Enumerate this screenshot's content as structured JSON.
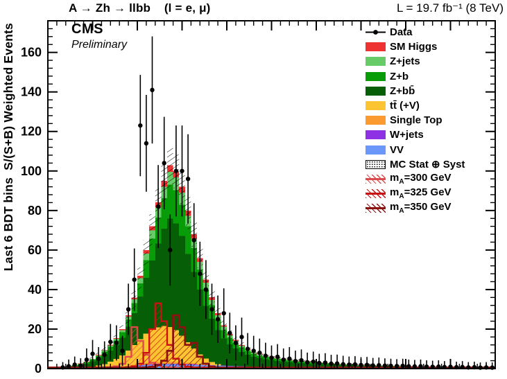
{
  "header": {
    "decay_title": "A → Zh → llbb    (l = e, μ)",
    "lumi": "L = 19.7 fb⁻¹ (8 TeV)",
    "experiment": "CMS",
    "status": "Preliminary"
  },
  "legend": [
    {
      "id": "data",
      "type": "marker",
      "color": "#000000",
      "label": "Data"
    },
    {
      "id": "smhiggs",
      "type": "fill",
      "color": "#ee3232",
      "label": "SM Higgs"
    },
    {
      "id": "zjets",
      "type": "fill",
      "color": "#67cb67",
      "label": "Z+jets"
    },
    {
      "id": "zb",
      "type": "fill",
      "color": "#089c08",
      "label": "Z+b"
    },
    {
      "id": "zbb",
      "type": "fill",
      "color": "#065f06",
      "label": "Z+bb̄"
    },
    {
      "id": "ttbar",
      "type": "fill",
      "color": "#fcc430",
      "label": "tt̄ (+V)"
    },
    {
      "id": "singletop",
      "type": "fill",
      "color": "#fb9a2e",
      "label": "Single Top"
    },
    {
      "id": "wjets",
      "type": "fill",
      "color": "#8e30e3",
      "label": "W+jets"
    },
    {
      "id": "vv",
      "type": "fill",
      "color": "#6b96fa",
      "label": "VV"
    },
    {
      "id": "mcstat",
      "type": "mc",
      "color": "#000000",
      "label": "MC Stat ⊕ Syst"
    },
    {
      "id": "m300",
      "type": "signal",
      "color": "#dc4b4b",
      "label_pre": "m",
      "label_sub": "A",
      "label_post": "=300 GeV"
    },
    {
      "id": "m325",
      "type": "signal",
      "color": "#c91212",
      "label_pre": "m",
      "label_sub": "A",
      "label_post": "=325 GeV"
    },
    {
      "id": "m350",
      "type": "signal",
      "color": "#8c1111",
      "label_pre": "m",
      "label_sub": "A",
      "label_post": "=350 GeV"
    }
  ],
  "chart_data": {
    "type": "bar",
    "subtype": "stacked-histogram-with-data-points-and-signal-overlays",
    "title": "A → Zh → llbb (l = e, μ)",
    "xlabel": "",
    "ylabel": "Last 6 BDT bins  S/(S+B) Weighted Events",
    "ylim": [
      0,
      176
    ],
    "y_major_tick_step": 20,
    "y_minor_tick_step": 4,
    "y_tick_labels": [
      0,
      20,
      40,
      60,
      80,
      100,
      120,
      140,
      160
    ],
    "x_axis_labels_shown": false,
    "x_major_divisions": 10,
    "x_minor_per_major": 5,
    "n_bins": 75,
    "grid": false,
    "legend_position": "top-right-inside",
    "colors": {
      "smhiggs": "#ee3232",
      "zjets": "#67cb67",
      "zb": "#089c08",
      "zbb": "#065f06",
      "ttbar": "#fcc430",
      "singletop": "#fb9a2e",
      "wjets": "#8e30e3",
      "vv": "#6b96fa",
      "m300": "#dc4b4b",
      "m325": "#c91212",
      "m350": "#8c1111",
      "data": "#000000",
      "frame": "#000000"
    },
    "stack_order": [
      "vv",
      "wjets",
      "singletop",
      "ttbar",
      "zbb",
      "zb",
      "zjets",
      "smhiggs"
    ],
    "series": {
      "vv": [
        0,
        0,
        0,
        0,
        0,
        0,
        0,
        0,
        0.1,
        0.15,
        0.2,
        0.3,
        0.5,
        0.8,
        1.1,
        1.4,
        1.7,
        1.9,
        2.1,
        2.2,
        2.2,
        2.2,
        2.1,
        2.0,
        1.9,
        1.8,
        1.7,
        1.6,
        1.5,
        1.4,
        1.3,
        1.2,
        1.1,
        1.0,
        0.9,
        0.85,
        0.8,
        0.75,
        0.7,
        0.65,
        0.6,
        0.55,
        0.5,
        0.48,
        0.45,
        0.42,
        0.4,
        0.38,
        0.35,
        0.32,
        0.3,
        0.28,
        0.26,
        0.24,
        0.22,
        0.2,
        0.18,
        0.16,
        0.15,
        0.14,
        0.13,
        0.12,
        0.11,
        0.1,
        0.1,
        0.09,
        0.09,
        0.08,
        0.08,
        0.07,
        0.07,
        0.06,
        0.06,
        0.05,
        0.05
      ],
      "wjets": [
        0,
        0,
        0,
        0,
        0,
        0,
        0,
        0,
        0.1,
        0.1,
        0.1,
        0.1,
        0.1,
        0.1,
        0.3,
        0.3,
        0.3,
        0.3,
        0.3,
        0.3,
        0.3,
        0.3,
        0.3,
        0.3,
        0.3,
        0.1,
        0.1,
        0.1,
        0.1,
        0.1,
        0.1,
        0.1,
        0.1,
        0.1,
        0.1,
        0.1,
        0.1,
        0.1,
        0.1,
        0.1,
        0.1,
        0,
        0,
        0,
        0,
        0,
        0,
        0,
        0,
        0,
        0,
        0,
        0,
        0,
        0,
        0,
        0,
        0,
        0,
        0,
        0,
        0,
        0,
        0,
        0,
        0,
        0,
        0,
        0,
        0,
        0,
        0,
        0,
        0,
        0
      ],
      "singletop": [
        0,
        0,
        0,
        0,
        0,
        0,
        0,
        0,
        0,
        0,
        0.2,
        0.25,
        0.3,
        0.45,
        0.6,
        0.75,
        0.9,
        1.0,
        1.0,
        1.1,
        1.0,
        0.9,
        0.8,
        0.6,
        0.45,
        0.3,
        0.2,
        0.1,
        0,
        0,
        0,
        0,
        0,
        0,
        0,
        0,
        0,
        0,
        0,
        0,
        0,
        0,
        0,
        0,
        0,
        0,
        0,
        0,
        0,
        0,
        0,
        0,
        0,
        0,
        0,
        0,
        0,
        0,
        0,
        0,
        0,
        0,
        0,
        0,
        0,
        0,
        0,
        0,
        0,
        0,
        0,
        0,
        0,
        0,
        0
      ],
      "ttbar": [
        0,
        0,
        0,
        0,
        0,
        0.3,
        0.5,
        0.9,
        1.4,
        2.0,
        3.0,
        4.2,
        5.8,
        7.8,
        10,
        12.5,
        14.8,
        16.5,
        17.5,
        18,
        17.5,
        16,
        13.5,
        10.5,
        7.5,
        5,
        3,
        1.5,
        0.6,
        0,
        0,
        0,
        0,
        0,
        0,
        0,
        0,
        0,
        0,
        0,
        0,
        0,
        0,
        0,
        0,
        0,
        0,
        0,
        0,
        0,
        0,
        0,
        0,
        0,
        0,
        0,
        0,
        0,
        0,
        0,
        0,
        0,
        0,
        0,
        0,
        0,
        0,
        0,
        0,
        0,
        0,
        0,
        0,
        0,
        0
      ],
      "zbb": [
        0.3,
        0.3,
        0.5,
        0.8,
        1.2,
        1.5,
        2.0,
        2.7,
        3.6,
        4.9,
        5.7,
        7.1,
        8.9,
        12,
        16.1,
        21.5,
        28.3,
        35,
        42.3,
        49.2,
        54.9,
        54,
        50.5,
        44.6,
        38.8,
        32.7,
        26.8,
        21.9,
        17.3,
        13.7,
        10.8,
        8.8,
        7.2,
        6.0,
        5.0,
        4.4,
        3.8,
        3.5,
        3.1,
        2.8,
        2.6,
        2.4,
        2.3,
        2.1,
        1.9,
        1.8,
        1.7,
        1.6,
        1.4,
        1.3,
        1.2,
        1.2,
        1.1,
        1.0,
        1.0,
        0.9,
        0.9,
        0.8,
        0.8,
        0.8,
        0.7,
        0.7,
        0.6,
        0.6,
        0.6,
        0.5,
        0.5,
        0.5,
        0.4,
        0.4,
        0.4,
        0.4,
        0.3,
        0.3,
        0.3
      ],
      "zb": [
        0.1,
        0.1,
        0.1,
        0.3,
        0.4,
        0.5,
        0.6,
        0.9,
        1.1,
        1.5,
        1.8,
        2.2,
        2.8,
        3.7,
        5.0,
        6.7,
        8.9,
        11,
        13.3,
        15.4,
        17.2,
        16.9,
        15.8,
        14,
        12.1,
        10.2,
        8.4,
        6.9,
        5.4,
        4.3,
        3.4,
        2.8,
        2.3,
        1.9,
        1.6,
        1.4,
        1.2,
        1.1,
        1.0,
        0.9,
        0.8,
        0.8,
        0.7,
        0.7,
        0.6,
        0.6,
        0.5,
        0.5,
        0.5,
        0.4,
        0.4,
        0.4,
        0.3,
        0.3,
        0.3,
        0.3,
        0.3,
        0.3,
        0.3,
        0.2,
        0.2,
        0.2,
        0.2,
        0.2,
        0.2,
        0.2,
        0.2,
        0.2,
        0.1,
        0.1,
        0.1,
        0.1,
        0.1,
        0.1,
        0.1
      ],
      "zjets": [
        0.03,
        0.04,
        0.06,
        0.1,
        0.14,
        0.18,
        0.24,
        0.33,
        0.43,
        0.58,
        0.68,
        0.85,
        1.06,
        1.43,
        1.92,
        2.56,
        3.38,
        4.18,
        5.05,
        5.87,
        6.56,
        6.45,
        6.02,
        5.33,
        4.63,
        3.9,
        3.2,
        2.62,
        2.06,
        1.64,
        1.29,
        1.06,
        0.86,
        0.71,
        0.6,
        0.52,
        0.45,
        0.41,
        0.38,
        0.34,
        0.31,
        0.29,
        0.27,
        0.25,
        0.23,
        0.21,
        0.2,
        0.19,
        0.17,
        0.16,
        0.14,
        0.14,
        0.13,
        0.12,
        0.12,
        0.11,
        0.11,
        0.1,
        0.1,
        0.09,
        0.09,
        0.08,
        0.08,
        0.07,
        0.07,
        0.06,
        0.06,
        0.06,
        0.05,
        0.05,
        0.05,
        0.04,
        0.04,
        0.04,
        0.03
      ],
      "smhiggs": [
        0.02,
        0.02,
        0.03,
        0.05,
        0.07,
        0.09,
        0.12,
        0.16,
        0.22,
        0.29,
        0.34,
        0.43,
        0.53,
        0.71,
        0.96,
        1.28,
        1.69,
        2.09,
        2.52,
        2.94,
        3.28,
        3.22,
        3.01,
        2.66,
        2.31,
        1.95,
        1.6,
        1.31,
        1.03,
        0.82,
        0.64,
        0.53,
        0.43,
        0.36,
        0.3,
        0.26,
        0.22,
        0.21,
        0.19,
        0.17,
        0.16,
        0.15,
        0.14,
        0.12,
        0.11,
        0.11,
        0.1,
        0.09,
        0.09,
        0.08,
        0.07,
        0.07,
        0.07,
        0.06,
        0.06,
        0.06,
        0.05,
        0.05,
        0.05,
        0.05,
        0.04,
        0.04,
        0.04,
        0.04,
        0.03,
        0.03,
        0.03,
        0.03,
        0.03,
        0.03,
        0.02,
        0.02,
        0.02,
        0.02,
        0.02
      ]
    },
    "mc_uncertainty": {
      "rel": 0.08,
      "abs": 0.4,
      "label": "MC Stat ⊕ Syst"
    },
    "signals": [
      {
        "id": "m300",
        "label": "mA=300 GeV",
        "color": "#dc4b4b",
        "line_width": 2.4,
        "values": [
          0.5,
          0.5,
          0.5,
          0.5,
          0.5,
          0.5,
          0.5,
          0.5,
          0.5,
          0.5,
          0.7,
          1.2,
          2.5,
          6,
          21,
          14,
          7,
          3,
          1.5,
          0.8,
          0.6,
          0.5,
          0.5,
          0.5,
          0.5,
          0.5,
          0.5,
          0.5,
          0.5,
          0.5,
          0.5,
          0.5,
          0.5,
          0.5,
          0.5,
          0.5,
          0.5,
          0.5,
          0.5,
          0.5,
          0.5,
          0.5,
          0.5,
          0.5,
          0.5,
          0.5,
          0.5,
          0.5,
          0.5,
          0.5,
          0.5,
          0.5,
          0.5,
          0.5,
          0.5,
          0.5,
          0.5,
          0.5,
          0.5,
          0.5,
          0.5,
          0.5,
          0.5,
          0.5,
          0.5,
          0.5,
          0.5,
          0.5,
          0.5,
          0.5,
          0.5,
          0.5,
          0.5,
          0.5,
          0.5
        ]
      },
      {
        "id": "m325",
        "label": "mA=325 GeV",
        "color": "#c91212",
        "line_width": 2.4,
        "values": [
          0.5,
          0.5,
          0.5,
          0.5,
          0.5,
          0.5,
          0.5,
          0.5,
          0.5,
          0.5,
          0.5,
          0.5,
          0.5,
          0.7,
          1.2,
          2.5,
          8,
          20,
          33,
          24,
          12,
          5,
          2,
          1,
          0.6,
          0.5,
          0.5,
          0.5,
          0.5,
          0.5,
          0.5,
          0.5,
          0.5,
          0.5,
          0.5,
          0.5,
          0.5,
          0.5,
          0.5,
          0.5,
          0.5,
          0.5,
          0.5,
          0.5,
          0.5,
          0.5,
          0.5,
          0.5,
          0.5,
          0.5,
          0.5,
          0.5,
          0.5,
          0.5,
          0.5,
          0.5,
          0.5,
          0.5,
          0.5,
          0.5,
          0.5,
          0.5,
          0.5,
          0.5,
          0.5,
          0.5,
          0.5,
          0.5,
          0.5,
          0.5,
          0.5,
          0.5,
          0.5,
          0.5,
          0.5
        ]
      },
      {
        "id": "m350",
        "label": "mA=350 GeV",
        "color": "#8c1111",
        "line_width": 2.8,
        "values": [
          0.5,
          0.5,
          0.5,
          0.5,
          0.5,
          0.5,
          0.5,
          0.5,
          0.5,
          0.5,
          0.5,
          0.5,
          0.5,
          0.5,
          0.5,
          0.5,
          0.6,
          0.9,
          1.8,
          4,
          9,
          27,
          21,
          12,
          13,
          6,
          2.5,
          1,
          0.5,
          0.5,
          0.5,
          0.5,
          0.5,
          0.5,
          0.5,
          0.5,
          0.5,
          0.5,
          0.5,
          0.5,
          0.5,
          0.5,
          0.5,
          0.5,
          0.5,
          0.5,
          0.5,
          0.5,
          0.5,
          0.5,
          0.5,
          0.5,
          0.5,
          0.5,
          0.5,
          0.5,
          0.5,
          0.5,
          0.5,
          0.5,
          0.5,
          0.5,
          0.5,
          0.5,
          0.5,
          0.5,
          0.5,
          0.5,
          0.5,
          0.5,
          0.5,
          0.5,
          0.5,
          0.5,
          0.5
        ]
      }
    ],
    "data_points": {
      "y": [
        null,
        null,
        0.6,
        1.2,
        2.0,
        1.5,
        4.5,
        7.5,
        5.0,
        7.0,
        13.5,
        13.0,
        9.0,
        30,
        45,
        123,
        114,
        141,
        82,
        104,
        60,
        100,
        100,
        96,
        65,
        48,
        40,
        30,
        25,
        28,
        18,
        13,
        16,
        10,
        9,
        8,
        6.5,
        5.5,
        6,
        4.5,
        5,
        3.8,
        4.2,
        3.2,
        3.5,
        2.8,
        3.0,
        2.5,
        2.6,
        2.2,
        2.0,
        2.1,
        1.8,
        1.9,
        1.6,
        1.7,
        1.5,
        1.4,
        1.3,
        1.4,
        1.2,
        1.1,
        1.2,
        1.0,
        0.9,
        1.0,
        0.8,
        0.9,
        0.7,
        0.8,
        0.6,
        0.7,
        0.5,
        0.6,
        0.5
      ],
      "err": [
        null,
        null,
        2.7,
        3.4,
        4.1,
        3.7,
        5.7,
        7.0,
        5.9,
        6.8,
        9.1,
        8.9,
        7.6,
        13.0,
        15.8,
        25.6,
        24.5,
        27.1,
        21.0,
        23.4,
        18.0,
        23.0,
        23.0,
        22.6,
        18.7,
        16.2,
        14.9,
        13.0,
        12.0,
        12.6,
        10.3,
        8.9,
        9.8,
        8.0,
        7.6,
        7.2,
        6.6,
        6.2,
        6.4,
        5.7,
        5.9,
        5.3,
        5.5,
        4.9,
        5.1,
        4.7,
        4.8,
        4.5,
        4.5,
        4.3,
        4.1,
        4.2,
        4.0,
        4.0,
        3.8,
        3.9,
        3.7,
        3.6,
        3.5,
        3.6,
        3.4,
        3.3,
        3.4,
        3.2,
        3.1,
        3.2,
        3.0,
        3.1,
        2.8,
        3.0,
        2.7,
        2.8,
        2.6,
        2.7,
        2.6
      ]
    }
  }
}
